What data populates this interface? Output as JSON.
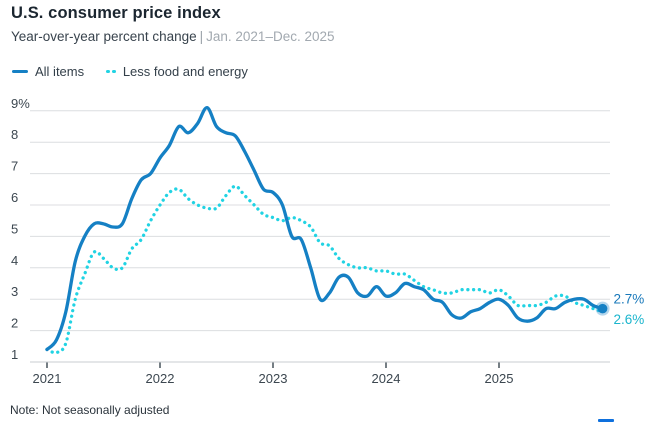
{
  "header": {
    "title": "U.S. consumer price index",
    "subtitle_main": "Year-over-year percent change",
    "subtitle_separator": "|",
    "subtitle_range": "Jan. 2021–Dec. 2025"
  },
  "legend": [
    {
      "label": "All items",
      "color": "#1580c4",
      "style": "solid"
    },
    {
      "label": "Less food and energy",
      "color": "#21d3e3",
      "style": "dotted"
    }
  ],
  "note": "Note: Not seasonally adjusted",
  "logo_fragment_color": "#0e70dd",
  "colors": {
    "grid": "#dcdee0",
    "axis": "#c9cdd0",
    "tick": "#47525b",
    "axis_text": "#3c4750"
  },
  "chart_data": {
    "type": "line",
    "title": "U.S. consumer price index",
    "ylabel": "Year-over-year percent change",
    "date_range": "Jan. 2021–Dec. 2025",
    "x_unit": "month",
    "grid": true,
    "ylim": [
      1,
      9
    ],
    "x_tick_labels": [
      "2021",
      "2022",
      "2023",
      "2024",
      "2025"
    ],
    "y_tick_labels": [
      "1",
      "2",
      "3",
      "4",
      "5",
      "6",
      "7",
      "8",
      "9%"
    ],
    "series": [
      {
        "name": "All items",
        "style": "solid",
        "color": "#1580c4",
        "end_label": "2.7%",
        "end_label_color": "#1878ba",
        "end_dot": true,
        "values": [
          1.4,
          1.7,
          2.6,
          4.2,
          5.0,
          5.4,
          5.4,
          5.3,
          5.4,
          6.2,
          6.8,
          7.0,
          7.5,
          7.9,
          8.5,
          8.3,
          8.6,
          9.1,
          8.5,
          8.3,
          8.2,
          7.7,
          7.1,
          6.5,
          6.4,
          6.0,
          5.0,
          4.9,
          4.0,
          3.0,
          3.2,
          3.7,
          3.7,
          3.2,
          3.1,
          3.4,
          3.1,
          3.2,
          3.5,
          3.4,
          3.3,
          3.0,
          2.9,
          2.5,
          2.4,
          2.6,
          2.7,
          2.9,
          3.0,
          2.8,
          2.4,
          2.3,
          2.4,
          2.7,
          2.7,
          2.9,
          3.0,
          3.0,
          2.8,
          2.7
        ]
      },
      {
        "name": "Less food and energy",
        "style": "dotted",
        "color": "#21d3e3",
        "end_label": "2.6%",
        "end_label_color": "#1ab5cd",
        "end_dot": false,
        "values": [
          1.4,
          1.3,
          1.6,
          3.0,
          3.8,
          4.5,
          4.3,
          4.0,
          4.0,
          4.6,
          4.9,
          5.5,
          6.0,
          6.4,
          6.5,
          6.2,
          6.0,
          5.9,
          5.9,
          6.3,
          6.6,
          6.3,
          6.0,
          5.7,
          5.6,
          5.5,
          5.6,
          5.5,
          5.3,
          4.8,
          4.7,
          4.3,
          4.1,
          4.0,
          4.0,
          3.9,
          3.9,
          3.8,
          3.8,
          3.6,
          3.4,
          3.3,
          3.2,
          3.2,
          3.3,
          3.3,
          3.3,
          3.2,
          3.3,
          3.1,
          2.8,
          2.8,
          2.8,
          2.9,
          3.1,
          3.1,
          2.9,
          2.8,
          2.7,
          2.6
        ]
      }
    ]
  }
}
